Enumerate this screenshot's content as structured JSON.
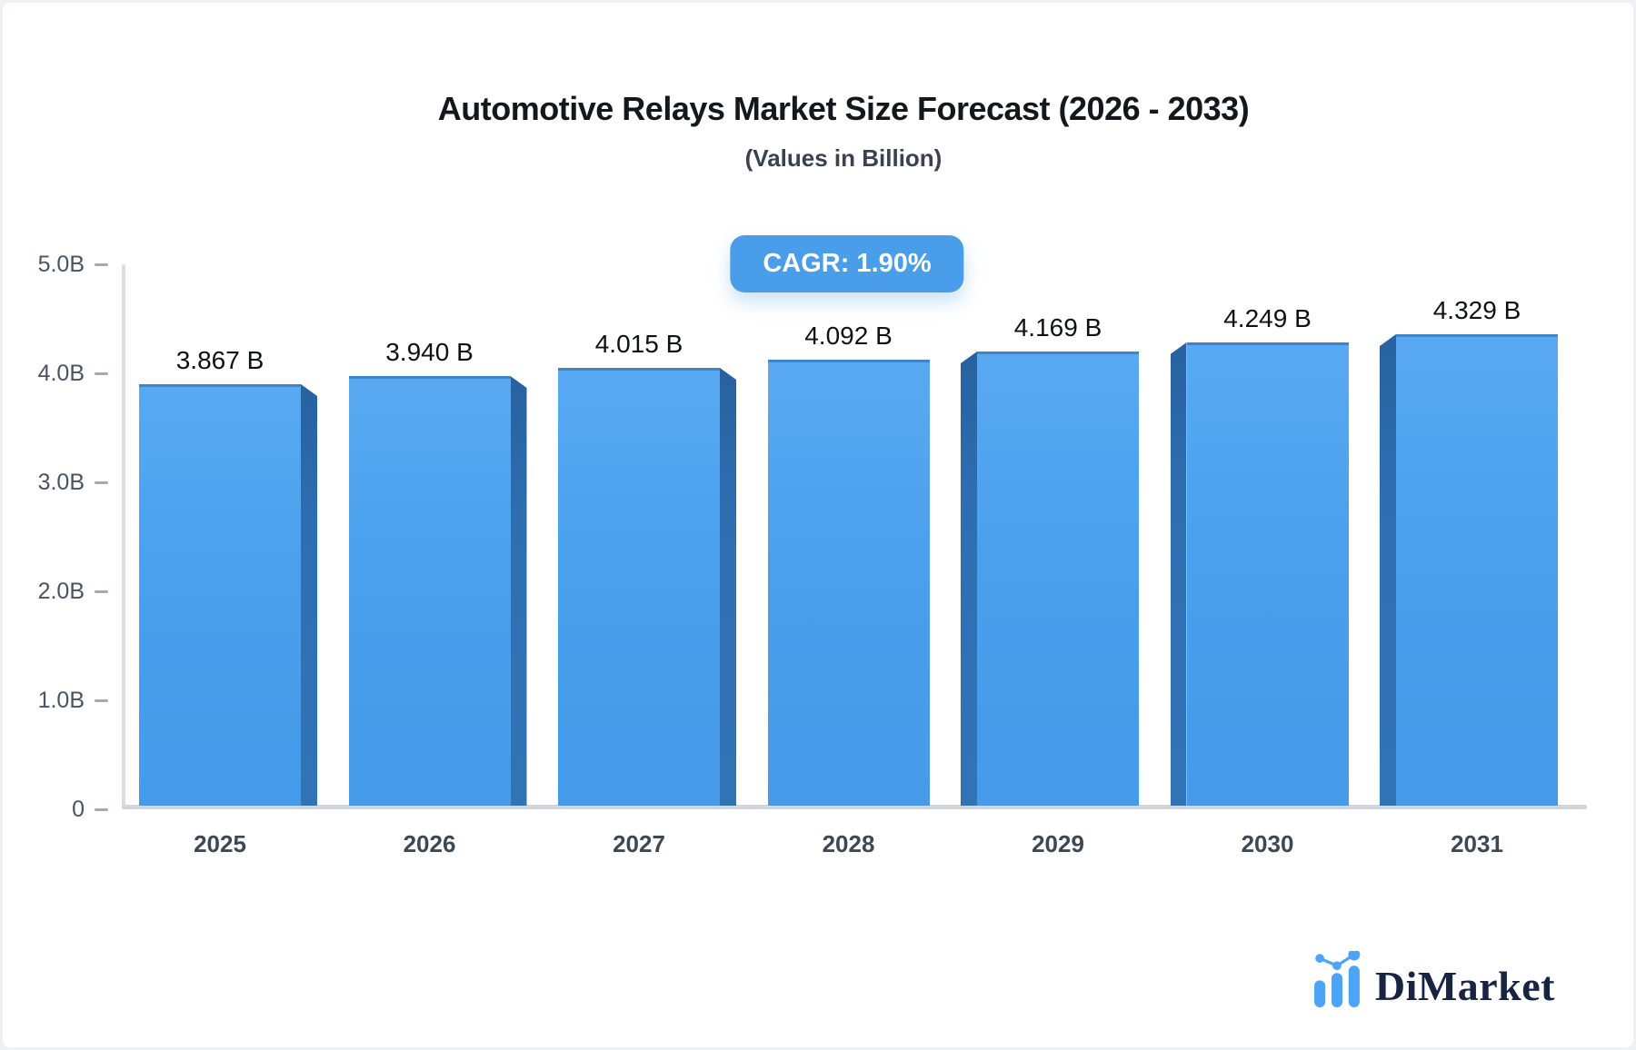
{
  "chart_data": {
    "type": "bar",
    "title": "Automotive Relays Market Size Forecast (2026 - 2033)",
    "subtitle": "(Values in Billion)",
    "cagr_badge": "CAGR: 1.90%",
    "categories": [
      "2025",
      "2026",
      "2027",
      "2028",
      "2029",
      "2030",
      "2031"
    ],
    "values": [
      3.867,
      3.94,
      4.015,
      4.092,
      4.169,
      4.249,
      4.329
    ],
    "value_labels": [
      "3.867 B",
      "3.940 B",
      "4.015 B",
      "4.092 B",
      "4.169 B",
      "4.249 B",
      "4.329 B"
    ],
    "ylabel_ticks": [
      "5.0B",
      "4.0B",
      "3.0B",
      "2.0B",
      "1.0B",
      "0"
    ],
    "ylim": [
      0,
      5
    ],
    "grid": false,
    "legend": false
  },
  "branding": {
    "logo_text": "DiMarket",
    "logo_icon": "bar-chart-sparkline-icon"
  },
  "colors": {
    "bar_face": "#4da2ee",
    "bar_side": "#2e6fb2",
    "badge_bg": "#499de9",
    "badge_text": "#ffffff",
    "axis_line": "#d6d8dc",
    "tick_dash": "#a3aab4",
    "title_text": "#15171c",
    "subtitle_text": "#3a4250",
    "y_label": "#4a5361",
    "x_label": "#3e4855",
    "value_label": "#0f1115",
    "logo_blue": "#4da3f5",
    "logo_navy": "#182441"
  }
}
